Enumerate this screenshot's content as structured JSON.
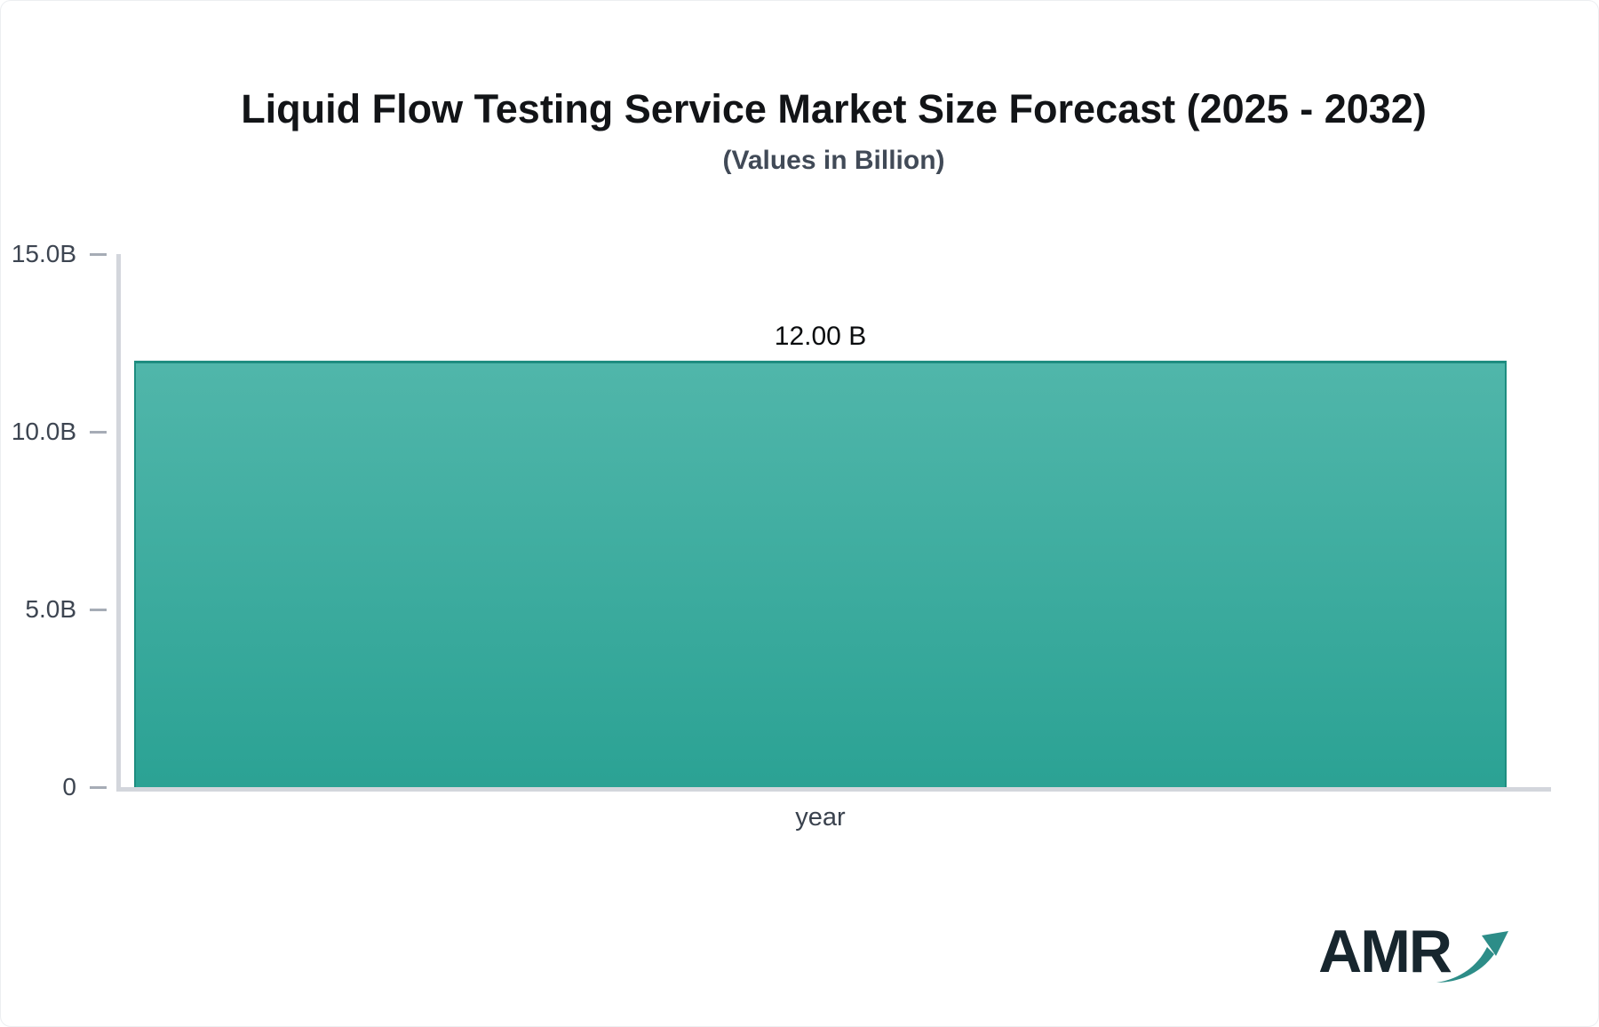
{
  "header": {
    "title": "Liquid Flow Testing Service Market Size Forecast (2025 - 2032)",
    "subtitle": "(Values in Billion)"
  },
  "chart_data": {
    "type": "bar",
    "title": "Liquid Flow Testing Service Market Size Forecast (2025 - 2032)",
    "subtitle": "(Values in Billion)",
    "categories": [
      "year"
    ],
    "values": [
      12.0
    ],
    "bar_label": "12.00 B",
    "xlabel": "year",
    "ylabel": "",
    "ylim": [
      0,
      15
    ],
    "yticks": [
      {
        "value": 0,
        "label": "0"
      },
      {
        "value": 5,
        "label": "5.0B"
      },
      {
        "value": 10,
        "label": "10.0B"
      },
      {
        "value": 15,
        "label": "15.0B"
      }
    ],
    "grid": "off",
    "legend": "none",
    "bar_color_top": "#50b6aa",
    "bar_color_bottom": "#2ba294",
    "bar_border_color": "#1e8d80"
  },
  "logo": {
    "text": "AMR",
    "arrow_color": "#2d8d88",
    "text_color": "#17262e"
  }
}
